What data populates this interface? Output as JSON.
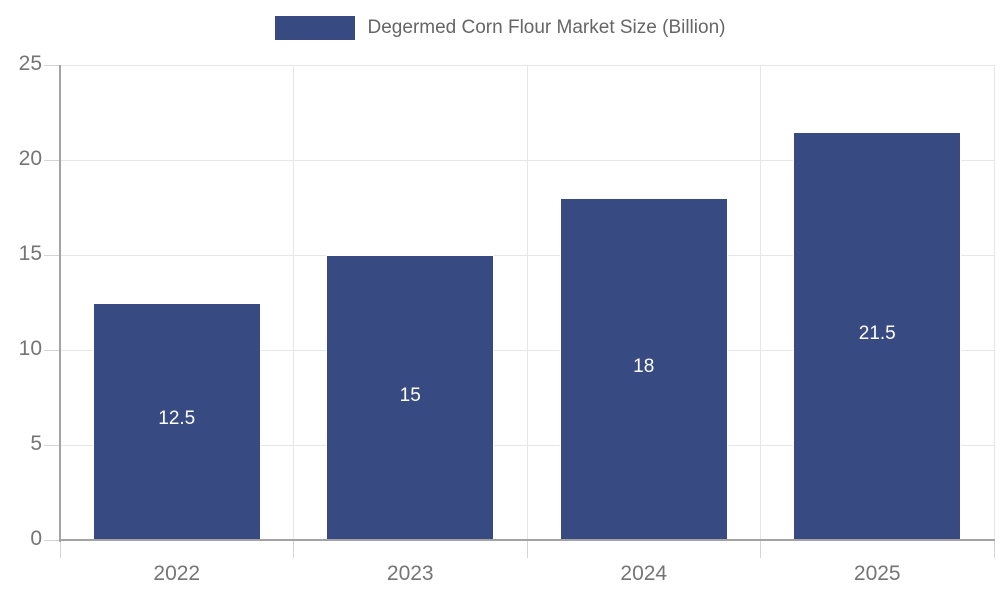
{
  "legend": {
    "label": "Degermed Corn Flour Market Size (Billion)"
  },
  "chart_data": {
    "type": "bar",
    "categories": [
      "2022",
      "2023",
      "2024",
      "2025"
    ],
    "values": [
      12.5,
      15,
      18,
      21.5
    ],
    "value_labels": [
      "12.5",
      "15",
      "18",
      "21.5"
    ],
    "title": "Degermed Corn Flour Market Size (Billion)",
    "xlabel": "",
    "ylabel": "",
    "ylim": [
      0,
      25
    ],
    "yticks": [
      0,
      5,
      10,
      15,
      20,
      25
    ],
    "grid": true,
    "legend_position": "top",
    "bar_color": "#384A82",
    "bar_border_color": "#ffffff",
    "value_label_color": "#ffffff"
  },
  "colors": {
    "grid": "#e6e6e6",
    "axis": "#a3a3a3",
    "tick": "#d4d4d4",
    "axis_label": "#757575",
    "legend_text": "#666666"
  }
}
